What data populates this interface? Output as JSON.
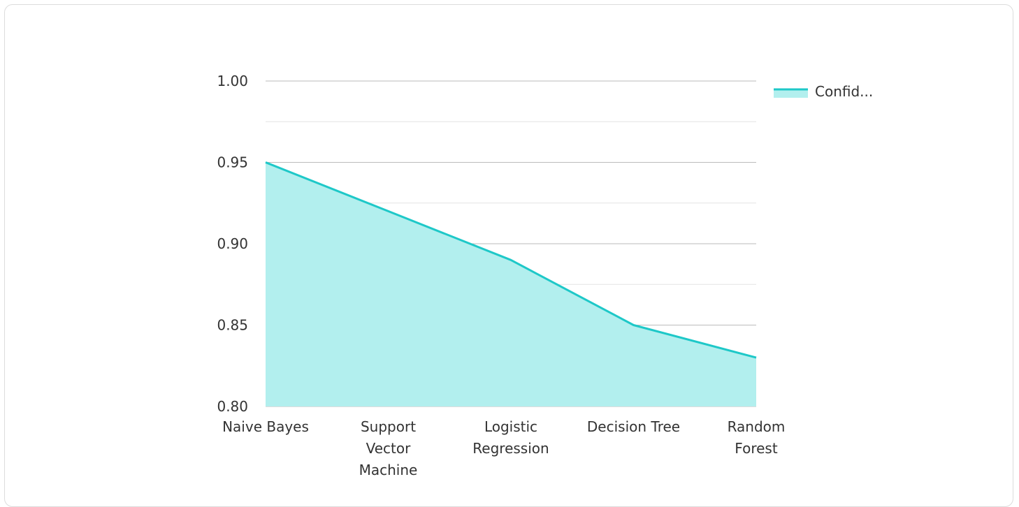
{
  "chart_data": {
    "type": "area",
    "categories": [
      [
        "Naive Bayes"
      ],
      [
        "Support",
        "Vector",
        "Machine"
      ],
      [
        "Logistic",
        "Regression"
      ],
      [
        "Decision Tree"
      ],
      [
        "Random",
        "Forest"
      ]
    ],
    "category_names": [
      "Naive Bayes",
      "Support Vector Machine",
      "Logistic Regression",
      "Decision Tree",
      "Random Forest"
    ],
    "series": [
      {
        "name": "Confid...",
        "values": [
          0.95,
          0.92,
          0.89,
          0.85,
          0.83
        ]
      }
    ],
    "ylim": [
      0.8,
      1.0
    ],
    "yticks": [
      "0.80",
      "0.85",
      "0.90",
      "0.95",
      "1.00"
    ],
    "ytick_values": [
      0.8,
      0.85,
      0.9,
      0.95,
      1.0
    ],
    "minor_grid": true,
    "legend_position": "top-right",
    "colors": {
      "line": "#1ec8c8",
      "fill": "#b2efee",
      "grid": "#bbbbbb",
      "minor_grid": "#e4e4e4"
    }
  }
}
